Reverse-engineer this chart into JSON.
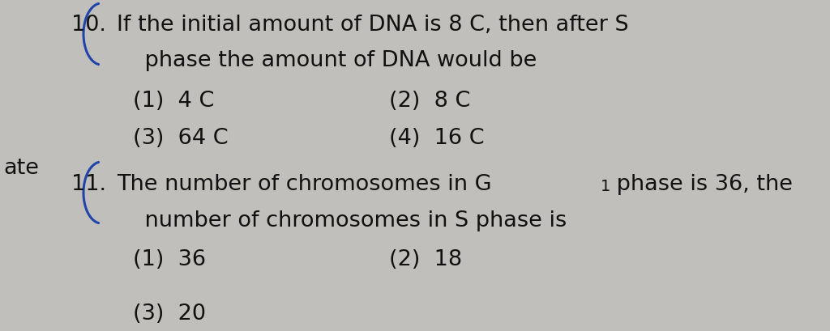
{
  "bg_color": "#c0bfbb",
  "text_color": "#111111",
  "q10_number": "10.",
  "q10_line1": "If the initial amount of DNA is 8 C, then after S",
  "q10_line2": "    phase the amount of DNA would be",
  "q10_opt1": "(1)  4 C",
  "q10_opt2": "(2)  8 C",
  "q10_opt3": "(3)  64 C",
  "q10_opt4": "(4)  16 C",
  "q11_number": "11.",
  "q11_line1_a": "The number of chromosomes in G",
  "q11_line1_sub": "1",
  "q11_line1_b": " phase is 36, the",
  "q11_line2": "    number of chromosomes in S phase is",
  "q11_opt1": "(1)  36",
  "q11_opt2": "(2)  18",
  "q11_opt3_partial": "(3)  20",
  "side_text": "ate",
  "arc_color": "#2244aa",
  "fontsize_main": 19.5,
  "fontsize_sub": 14
}
